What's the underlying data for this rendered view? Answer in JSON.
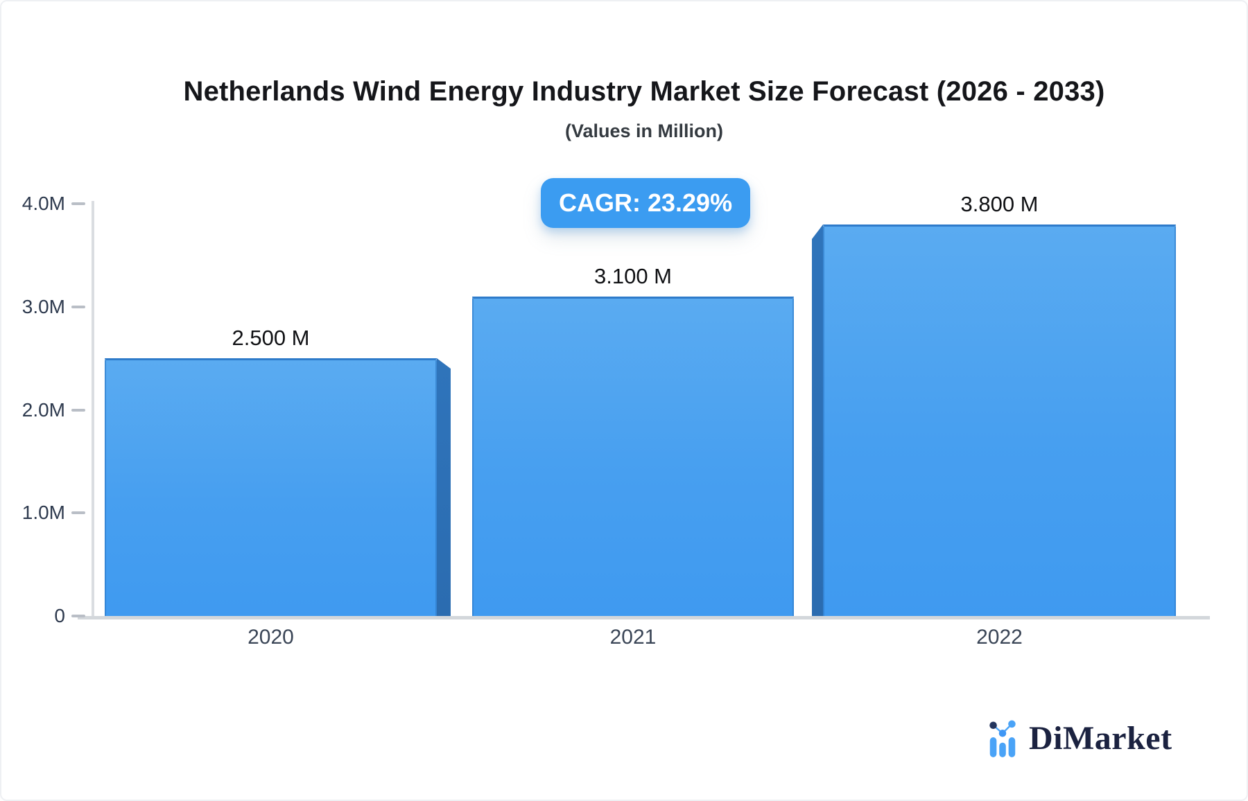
{
  "header": {
    "title": "Netherlands Wind Energy Industry Market Size Forecast (2026 - 2033)",
    "subtitle": "(Values in Million)"
  },
  "badge": {
    "label": "CAGR: 23.29%",
    "background_color": "#3b9cf1",
    "text_color": "#ffffff"
  },
  "chart_data": {
    "type": "bar",
    "title": "Netherlands Wind Energy Industry Market Size Forecast (2026 - 2033)",
    "subtitle": "(Values in Million)",
    "categories": [
      "2020",
      "2021",
      "2022"
    ],
    "values": [
      2.5,
      3.1,
      3.8
    ],
    "value_labels": [
      "2.500 M",
      "3.100 M",
      "3.800 M"
    ],
    "unit": "Million",
    "ylim": [
      0,
      4.0
    ],
    "yticks": [
      {
        "value": 4.0,
        "label": "4.0M"
      },
      {
        "value": 3.0,
        "label": "3.0M"
      },
      {
        "value": 2.0,
        "label": "2.0M"
      },
      {
        "value": 1.0,
        "label": "1.0M"
      },
      {
        "value": 0,
        "label": "0"
      }
    ],
    "grid": false,
    "legend": false,
    "bar_color_top": "#5aabf1",
    "bar_color_bottom": "#3f9af0",
    "bar_edge_color": "#2e7bca",
    "bar_side_color": "#2b6cb0",
    "bevels": [
      "right",
      "none",
      "left"
    ]
  },
  "footer": {
    "brand": "DiMarket",
    "logo_icon": "bar-line-chart-icon",
    "brand_color": "#1b2240",
    "icon_color": "#4aa3f7"
  }
}
